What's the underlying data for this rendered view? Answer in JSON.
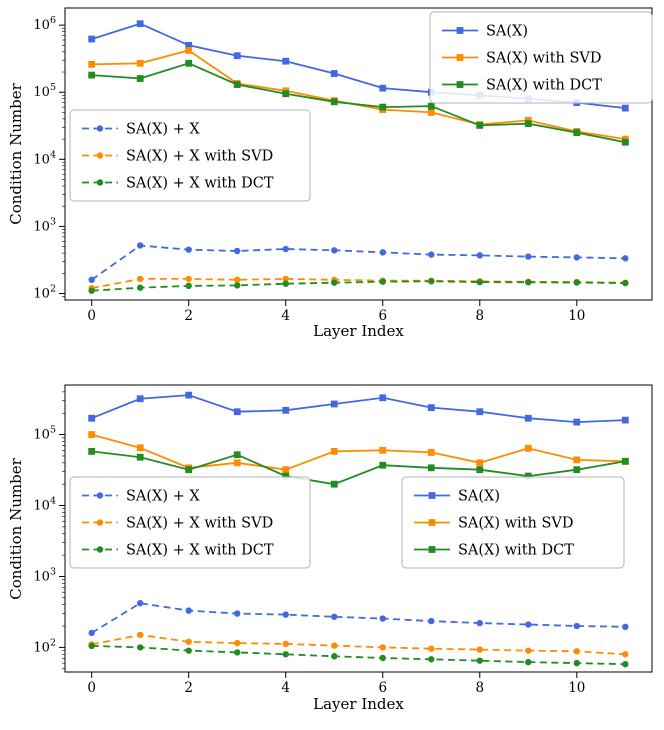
{
  "figure": {
    "background": "#ffffff"
  },
  "colors": {
    "blue": "#4169e1",
    "orange": "#ff8c00",
    "green": "#228b22",
    "axis": "#000000",
    "text": "#000000",
    "legend_border": "#b3b3b3"
  },
  "chart_data": [
    {
      "type": "line",
      "xlabel": "Layer Index",
      "ylabel": "Condition Number",
      "x": [
        0,
        1,
        2,
        3,
        4,
        5,
        6,
        7,
        8,
        9,
        10,
        11
      ],
      "xticks": [
        0,
        2,
        4,
        6,
        8,
        10
      ],
      "xlim": [
        -0.55,
        11.55
      ],
      "yscale": "log",
      "ylim": [
        80,
        1800000
      ],
      "ytick_exponents": [
        2,
        3,
        4,
        5,
        6
      ],
      "grid": false,
      "legend_positions": [
        "upper right (solid series)",
        "center left (dashed series)"
      ],
      "series": [
        {
          "name": "SA(X)",
          "color": "blue",
          "line": "solid",
          "marker": "square",
          "values": [
            620000,
            1050000,
            500000,
            350000,
            290000,
            190000,
            115000,
            100000,
            90000,
            80000,
            70000,
            58000
          ]
        },
        {
          "name": "SA(X) with SVD",
          "color": "orange",
          "line": "solid",
          "marker": "square",
          "values": [
            260000,
            270000,
            420000,
            135000,
            105000,
            75000,
            55000,
            50000,
            33000,
            38000,
            26000,
            20000
          ]
        },
        {
          "name": "SA(X) with DCT",
          "color": "green",
          "line": "solid",
          "marker": "square",
          "values": [
            180000,
            160000,
            270000,
            130000,
            95000,
            72000,
            60000,
            62000,
            32000,
            34000,
            25000,
            18000
          ]
        },
        {
          "name": "SA(X) + X",
          "color": "blue",
          "line": "dashed",
          "marker": "circle",
          "values": [
            160,
            520,
            450,
            430,
            460,
            440,
            410,
            380,
            370,
            355,
            345,
            335
          ]
        },
        {
          "name": "SA(X) + X with SVD",
          "color": "orange",
          "line": "dashed",
          "marker": "circle",
          "values": [
            120,
            165,
            165,
            160,
            165,
            160,
            155,
            155,
            152,
            150,
            148,
            145
          ]
        },
        {
          "name": "SA(X) + X with DCT",
          "color": "green",
          "line": "dashed",
          "marker": "circle",
          "values": [
            110,
            122,
            130,
            132,
            140,
            145,
            150,
            152,
            148,
            147,
            146,
            143
          ]
        }
      ]
    },
    {
      "type": "line",
      "xlabel": "Layer Index",
      "ylabel": "Condition Number",
      "x": [
        0,
        1,
        2,
        3,
        4,
        5,
        6,
        7,
        8,
        9,
        10,
        11
      ],
      "xticks": [
        0,
        2,
        4,
        6,
        8,
        10
      ],
      "xlim": [
        -0.55,
        11.55
      ],
      "yscale": "log",
      "ylim": [
        45,
        500000
      ],
      "ytick_exponents": [
        2,
        3,
        4,
        5
      ],
      "grid": false,
      "legend_positions": [
        "center left (dashed series)",
        "center right (solid series)"
      ],
      "series": [
        {
          "name": "SA(X)",
          "color": "blue",
          "line": "solid",
          "marker": "square",
          "values": [
            170000,
            320000,
            360000,
            210000,
            220000,
            270000,
            330000,
            240000,
            210000,
            170000,
            150000,
            160000
          ]
        },
        {
          "name": "SA(X) with SVD",
          "color": "orange",
          "line": "solid",
          "marker": "square",
          "values": [
            100000,
            65000,
            34000,
            40000,
            32000,
            58000,
            60000,
            56000,
            40000,
            64000,
            44000,
            42000
          ]
        },
        {
          "name": "SA(X) with DCT",
          "color": "green",
          "line": "solid",
          "marker": "square",
          "values": [
            58000,
            48000,
            32000,
            52000,
            26000,
            20000,
            37000,
            34000,
            32000,
            26000,
            32000,
            42000
          ]
        },
        {
          "name": "SA(X) + X",
          "color": "blue",
          "line": "dashed",
          "marker": "circle",
          "values": [
            160,
            420,
            330,
            300,
            290,
            270,
            255,
            235,
            220,
            210,
            200,
            195
          ]
        },
        {
          "name": "SA(X) + X with SVD",
          "color": "orange",
          "line": "dashed",
          "marker": "circle",
          "values": [
            110,
            150,
            120,
            115,
            112,
            106,
            100,
            96,
            93,
            90,
            88,
            80
          ]
        },
        {
          "name": "SA(X) + X with DCT",
          "color": "green",
          "line": "dashed",
          "marker": "circle",
          "values": [
            105,
            100,
            90,
            85,
            80,
            75,
            71,
            68,
            65,
            62,
            60,
            58
          ]
        }
      ]
    }
  ]
}
